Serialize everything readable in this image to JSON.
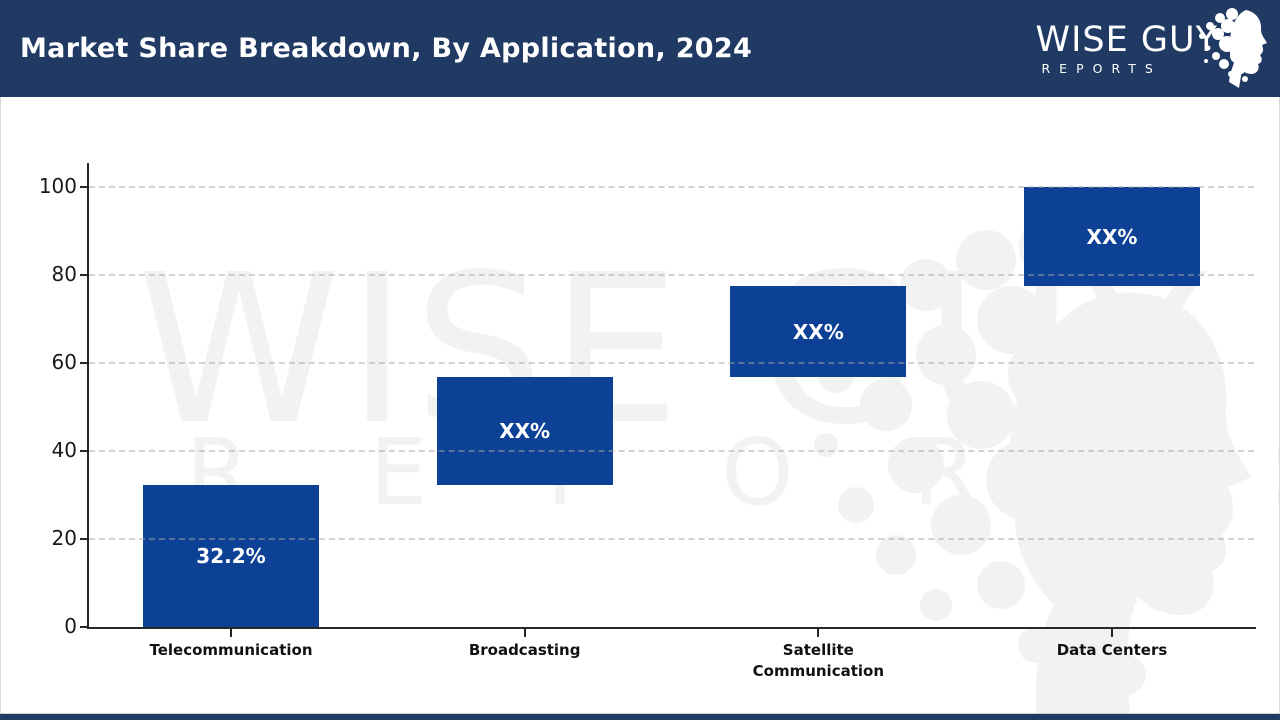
{
  "header": {
    "title": "Market Share Breakdown, By Application, 2024",
    "logo": {
      "name": "WISE GUY",
      "tagline": "REPORTS"
    }
  },
  "watermark": {
    "line1": "WISE GUY",
    "line2": "R E P O R T S"
  },
  "colors": {
    "header_bg": "#203a64",
    "footer_bg": "#203a64",
    "bar": "#0c4195",
    "grid": "rgba(165,165,165,0.5)",
    "axis": "#262626",
    "tick_text": "#1a1a1a",
    "bar_label_text": "#ffffff",
    "watermark": "#f2f2f2"
  },
  "chart_data": {
    "type": "bar",
    "variant": "waterfall",
    "title": "Market Share Breakdown, By Application, 2024",
    "categories": [
      "Telecommunication",
      "Broadcasting",
      "Satellite Communication",
      "Data Centers"
    ],
    "segments": [
      {
        "category": "Telecommunication",
        "start": 0,
        "end": 32.2,
        "label": "32.2%"
      },
      {
        "category": "Broadcasting",
        "start": 32.2,
        "end": 56.8,
        "label": "XX%"
      },
      {
        "category": "Satellite Communication",
        "start": 56.8,
        "end": 77.5,
        "label": "XX%"
      },
      {
        "category": "Data Centers",
        "start": 77.5,
        "end": 100,
        "label": "XX%"
      }
    ],
    "xlabel": "",
    "ylabel": "",
    "ylim": [
      0,
      100
    ],
    "yticks": [
      0,
      20,
      40,
      60,
      80,
      100
    ],
    "grid": "horizontal-dashed",
    "legend": "none",
    "bar_color": "#0c4195"
  }
}
